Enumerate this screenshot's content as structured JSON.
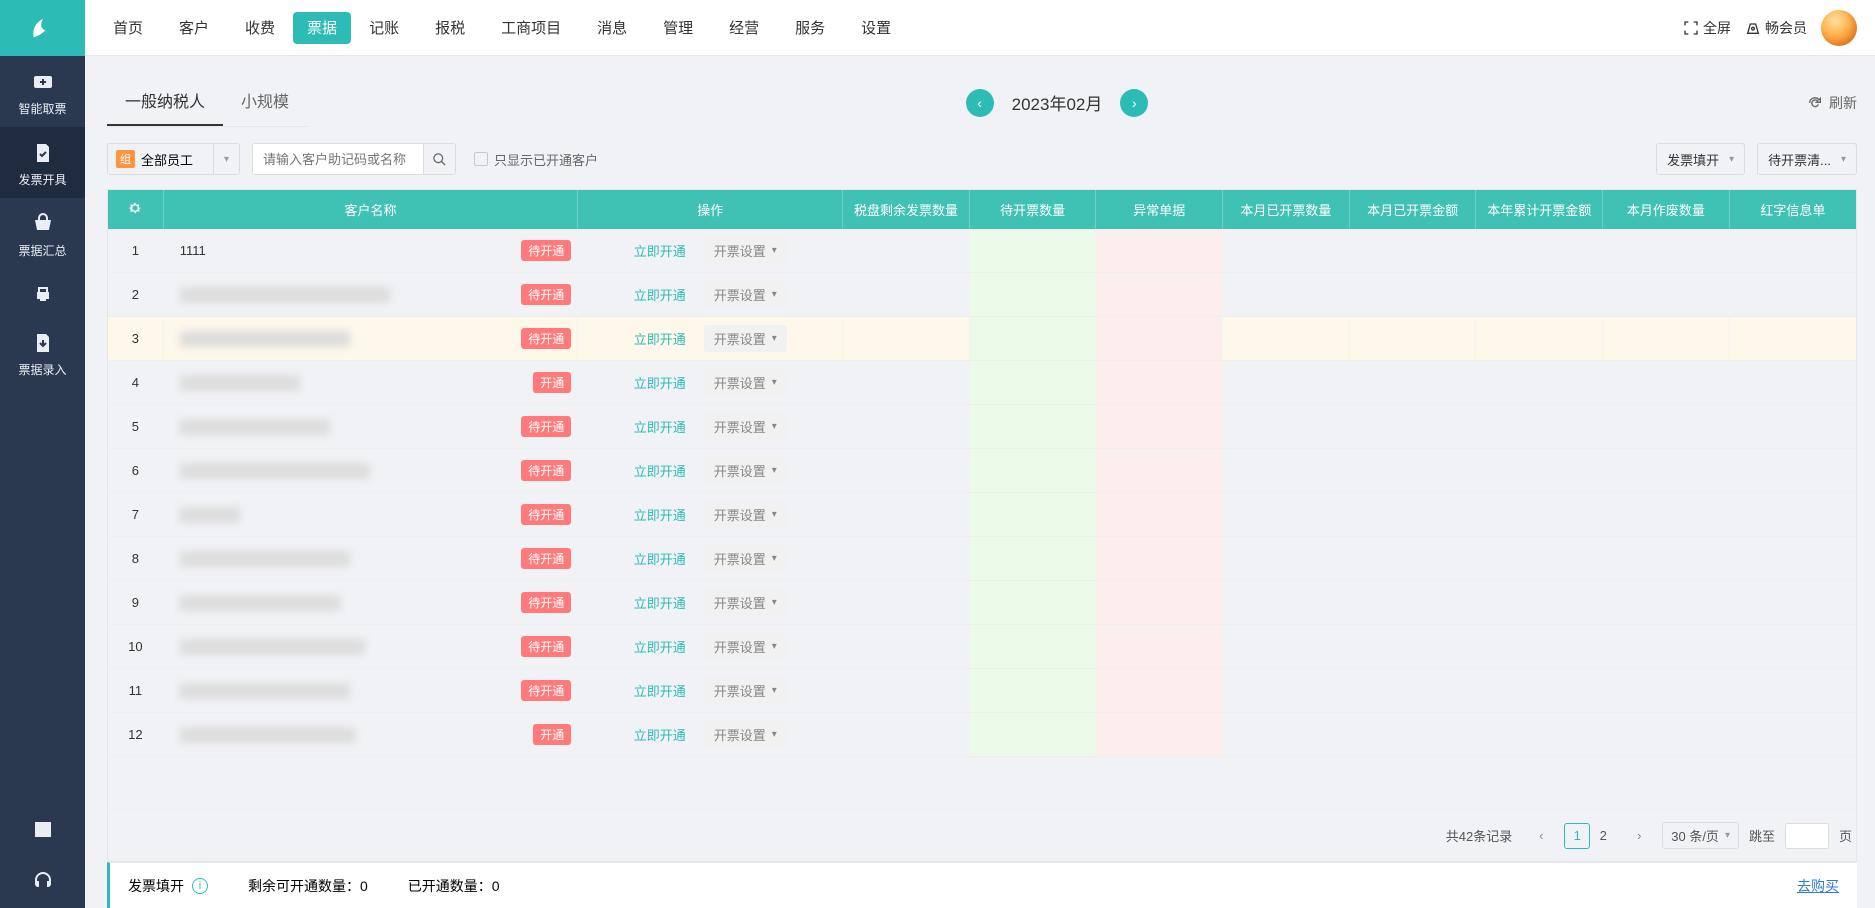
{
  "topnav": {
    "items": [
      "首页",
      "客户",
      "收费",
      "票据",
      "记账",
      "报税",
      "工商项目",
      "消息",
      "管理",
      "经营",
      "服务",
      "设置"
    ],
    "activeIndex": 3,
    "fullscreen": "全屏",
    "vip": "畅会员"
  },
  "sidebar": {
    "items": [
      {
        "label": "智能取票"
      },
      {
        "label": "发票开具"
      },
      {
        "label": "票据汇总"
      },
      {
        "label": ""
      },
      {
        "label": "票据录入"
      }
    ],
    "activeIndex": 1
  },
  "tabs": {
    "items": [
      "一般纳税人",
      "小规模"
    ],
    "activeIndex": 0
  },
  "date": {
    "text": "2023年02月"
  },
  "refresh": {
    "label": "刷新"
  },
  "filter": {
    "empTag": "组",
    "empLabel": "全部员工",
    "searchPlaceholder": "请输入客户助记码或名称",
    "onlyOpened": "只显示已开通客户",
    "rightBtn1": "发票填开",
    "rightBtn2": "待开票清..."
  },
  "table": {
    "headers": [
      "客户名称",
      "操作",
      "税盘剩余发票数量",
      "待开票数量",
      "异常单据",
      "本月已开票数量",
      "本月已开票金额",
      "本年累计开票金额",
      "本月作废数量",
      "红字信息单"
    ],
    "rows": [
      {
        "idx": 1,
        "name": "1111",
        "blurW": 0,
        "badge": "待开通",
        "link": "立即开通",
        "op": "开票设置"
      },
      {
        "idx": 2,
        "name": "",
        "blurW": 210,
        "badge": "待开通",
        "link": "立即开通",
        "op": "开票设置"
      },
      {
        "idx": 3,
        "name": "",
        "blurW": 170,
        "badge": "待开通",
        "link": "立即开通",
        "op": "开票设置",
        "hovered": true
      },
      {
        "idx": 4,
        "name": "",
        "blurW": 120,
        "badge": "开通",
        "link": "立即开通",
        "op": "开票设置"
      },
      {
        "idx": 5,
        "name": "",
        "blurW": 150,
        "badge": "待开通",
        "link": "立即开通",
        "op": "开票设置"
      },
      {
        "idx": 6,
        "name": "",
        "blurW": 190,
        "badge": "待开通",
        "link": "立即开通",
        "op": "开票设置"
      },
      {
        "idx": 7,
        "name": "",
        "blurW": 60,
        "badge": "待开通",
        "link": "立即开通",
        "op": "开票设置"
      },
      {
        "idx": 8,
        "name": "",
        "blurW": 170,
        "badge": "待开通",
        "link": "立即开通",
        "op": "开票设置"
      },
      {
        "idx": 9,
        "name": "",
        "blurW": 160,
        "badge": "待开通",
        "link": "立即开通",
        "op": "开票设置"
      },
      {
        "idx": 10,
        "name": "",
        "blurW": 185,
        "badge": "待开通",
        "link": "立即开通",
        "op": "开票设置"
      },
      {
        "idx": 11,
        "name": "",
        "blurW": 170,
        "badge": "待开通",
        "link": "立即开通",
        "op": "开票设置"
      },
      {
        "idx": 12,
        "name": "",
        "blurW": 175,
        "badge": "开通",
        "link": "立即开通",
        "op": "开票设置"
      }
    ]
  },
  "pager": {
    "totalText": "共42条记录",
    "pages": [
      "1",
      "2"
    ],
    "activePage": 0,
    "sizeLabel": "30 条/页",
    "jumpLabel": "跳至",
    "pageSuffix": "页"
  },
  "footer": {
    "title": "发票填开",
    "remain": "剩余可开通数量：0",
    "opened": "已开通数量：0",
    "buy": "去购买"
  },
  "colors": {
    "primary": "#2dbcb5",
    "sidebar": "#2a3950",
    "badge": "#ff7b7b",
    "orange": "#ff9540"
  }
}
